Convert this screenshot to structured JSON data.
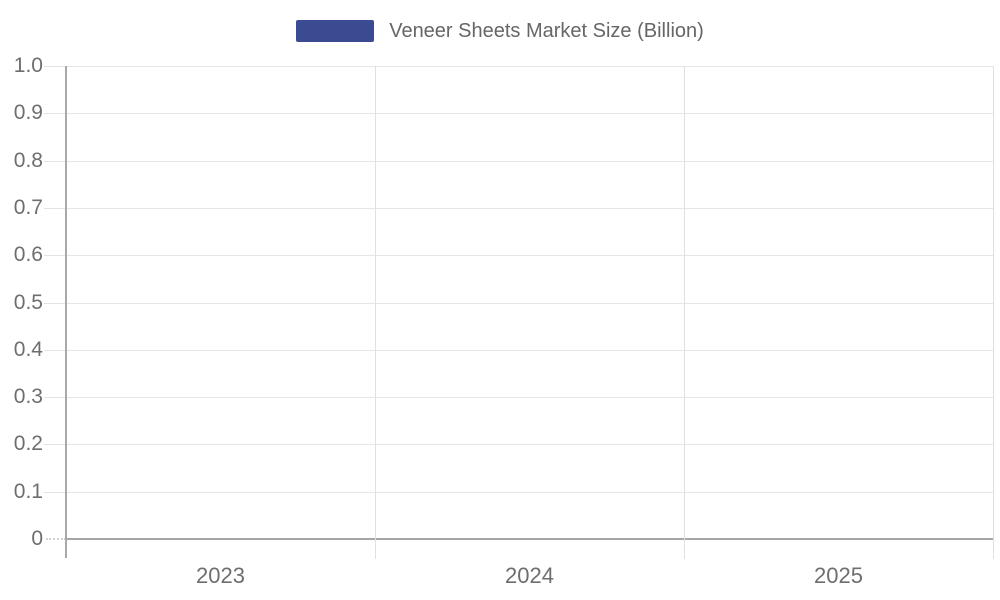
{
  "legend": {
    "items": [
      {
        "label": "Veneer Sheets Market Size (Billion)",
        "color": "#3a4b92"
      }
    ]
  },
  "y_axis": {
    "tick_labels": [
      "1.0",
      "0.9",
      "0.8",
      "0.7",
      "0.6",
      "0.5",
      "0.4",
      "0.3",
      "0.2",
      "0.1",
      "0"
    ]
  },
  "x_axis": {
    "labels": [
      "2023",
      "2024",
      "2025"
    ]
  },
  "colors": {
    "accent": "#3a4b92",
    "grid": "#e6e6e6",
    "axis_line": "#a6a6a6",
    "axis_label_text": "#6e6e6e",
    "legend_text": "#666666"
  },
  "chart_data": {
    "type": "bar",
    "title": "Veneer Sheets Market Size (Billion)",
    "categories": [
      "2023",
      "2024",
      "2025"
    ],
    "series": [
      {
        "name": "Veneer Sheets Market Size (Billion)",
        "values": [
          null,
          null,
          null
        ]
      }
    ],
    "xlabel": "",
    "ylabel": "",
    "ylim": [
      0,
      1.0
    ],
    "y_tick_step": 0.1,
    "grid": true,
    "legend_position": "top-center"
  }
}
